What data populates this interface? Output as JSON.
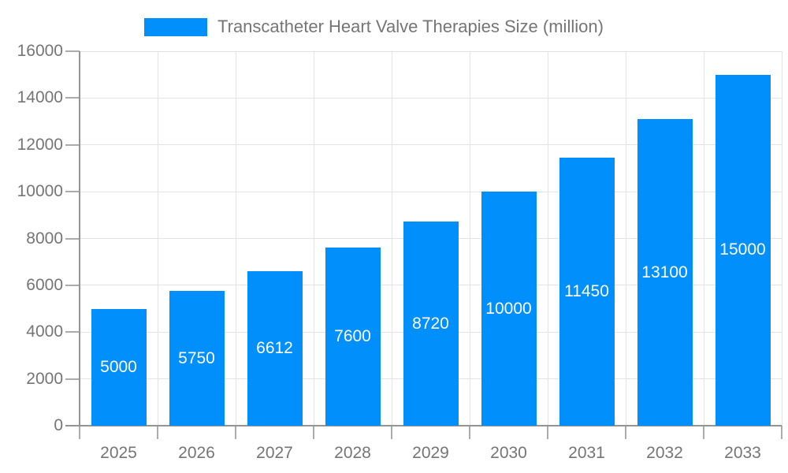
{
  "legend": {
    "label": "Transcatheter Heart Valve Therapies Size (million)"
  },
  "chart_data": {
    "type": "bar",
    "title": "Transcatheter Heart Valve Therapies Size (million)",
    "categories": [
      "2025",
      "2026",
      "2027",
      "2028",
      "2029",
      "2030",
      "2031",
      "2032",
      "2033"
    ],
    "series": [
      {
        "name": "Transcatheter Heart Valve Therapies Size (million)",
        "values": [
          5000,
          5750,
          6612,
          7600,
          8720,
          10000,
          11450,
          13100,
          15000
        ]
      }
    ],
    "bar_value_labels": [
      "5000",
      "5750",
      "6612",
      "7600",
      "8720",
      "10000",
      "11450",
      "13100",
      "15000"
    ],
    "xlabel": "",
    "ylabel": "",
    "ylim": [
      0,
      16000
    ],
    "yticks": [
      0,
      2000,
      4000,
      6000,
      8000,
      10000,
      12000,
      14000,
      16000
    ],
    "grid": true,
    "legend_position": "top",
    "colors": {
      "bar": "#008FFB",
      "bar_label": "#FFFFFF",
      "axis_text": "#757575",
      "grid_line": "#E3E3E3",
      "axis_line": "#949494",
      "tick_line": "#ABABAB",
      "background": "#FFFFFF"
    }
  }
}
